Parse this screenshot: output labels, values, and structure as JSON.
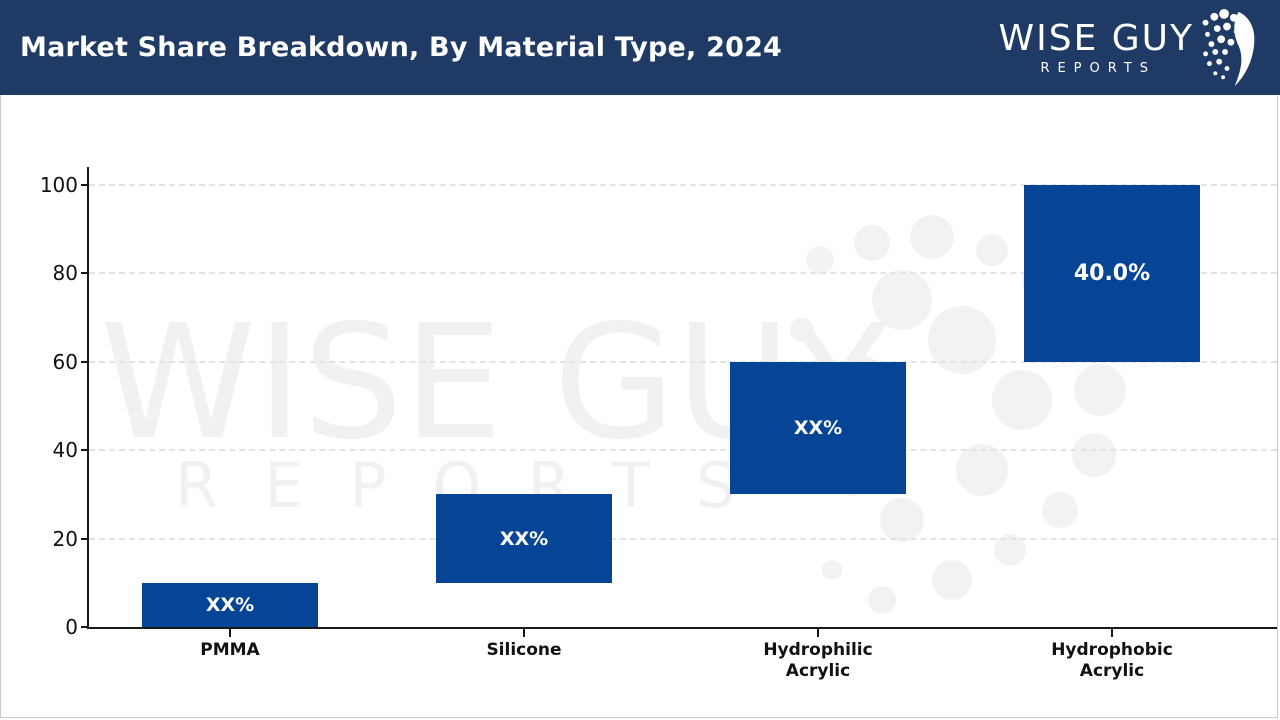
{
  "header": {
    "title": "Market Share Breakdown, By Material Type, 2024",
    "logo": {
      "line1": "WISE GUY",
      "line2": "REPORTS"
    }
  },
  "watermark": {
    "line1": "WISE GUY",
    "line2": "REPORTS"
  },
  "chart_data": {
    "type": "bar",
    "subtype": "waterfall",
    "title": "Market Share Breakdown, By Material Type, 2024",
    "categories": [
      "PMMA",
      "Silicone",
      "Hydrophilic Acrylic",
      "Hydrophobic Acrylic"
    ],
    "segments": [
      {
        "category": "PMMA",
        "start": 0,
        "end": 10,
        "label": "XX%"
      },
      {
        "category": "Silicone",
        "start": 10,
        "end": 30,
        "label": "XX%"
      },
      {
        "category": "Hydrophilic Acrylic",
        "start": 30,
        "end": 60,
        "label": "XX%"
      },
      {
        "category": "Hydrophobic Acrylic",
        "start": 60,
        "end": 100,
        "label": "40.0%"
      }
    ],
    "yticks": [
      0,
      20,
      40,
      60,
      80,
      100
    ],
    "ylim": [
      0,
      100
    ],
    "xlabel": "",
    "ylabel": "",
    "grid": "horizontal-dashed",
    "legend": "none"
  },
  "colors": {
    "header_bg": "#203A66",
    "bar_fill": "#064496",
    "value_label": "#ffffff",
    "grid_line": "#e3e3e7",
    "axis_line": "#1a1a1a",
    "tick_label": "#111111",
    "title_text": "#ffffff",
    "watermark": "#f1f1f4"
  }
}
